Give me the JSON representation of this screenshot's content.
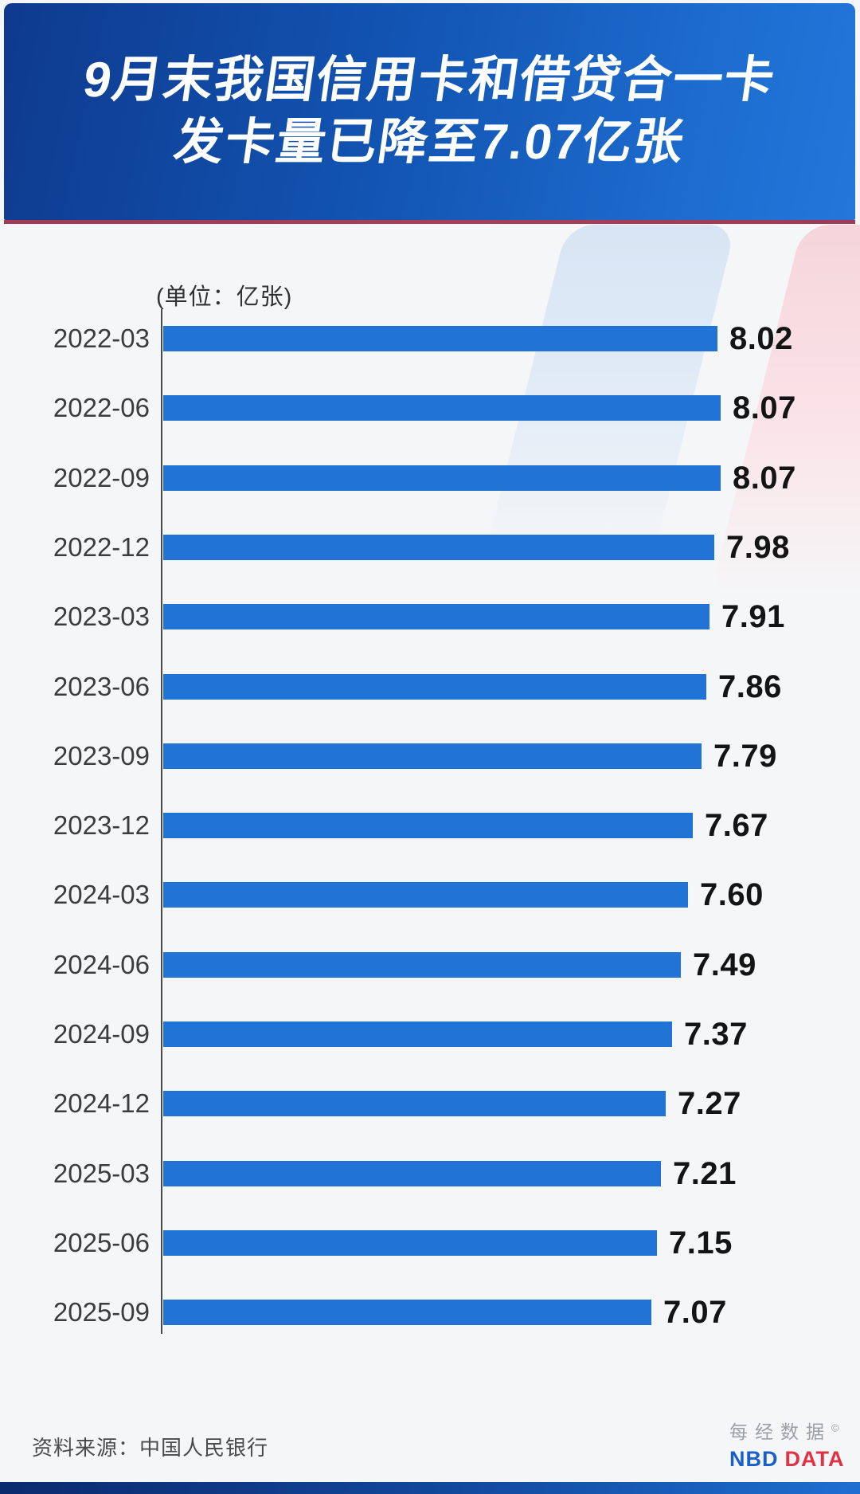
{
  "header": {
    "title_lines": [
      "9月末我国信用卡和借贷合一卡",
      "发卡量已降至7.07亿张"
    ]
  },
  "chart_data": {
    "type": "bar",
    "orientation": "horizontal",
    "title": "9月末我国信用卡和借贷合一卡发卡量已降至7.07亿张",
    "unit_label": "(单位：亿张)",
    "categories": [
      "2022-03",
      "2022-06",
      "2022-09",
      "2022-12",
      "2023-03",
      "2023-06",
      "2023-09",
      "2023-12",
      "2024-03",
      "2024-06",
      "2024-09",
      "2024-12",
      "2025-03",
      "2025-06",
      "2025-09"
    ],
    "values": [
      8.02,
      8.07,
      8.07,
      7.98,
      7.91,
      7.86,
      7.79,
      7.67,
      7.6,
      7.49,
      7.37,
      7.27,
      7.21,
      7.15,
      7.07
    ],
    "value_decimals": 2,
    "xlim": [
      0,
      8.07
    ],
    "grid": false,
    "legend": false,
    "bar_color": "#2173d6",
    "value_label_color": "#141414",
    "category_label_color": "#3c3c3c"
  },
  "footer": {
    "source": "资料来源：中国人民银行",
    "logo": {
      "cn": "每经数据",
      "copyright": "©",
      "en_blue": "NBD",
      "en_red": "DATA"
    }
  },
  "colors": {
    "banner_gradient_start": "#0e3a8e",
    "banner_gradient_end": "#1e6fd2",
    "banner_underline": "#a23a56",
    "background": "#f5f6f7",
    "decor_blue": "#d7e5f4",
    "decor_pink": "#f6d5dc",
    "bottom_strip_start": "#0a2a6d",
    "bottom_strip_end": "#1e6ed0",
    "nbd_blue": "#1a5fc8",
    "nbd_red": "#dd3344"
  }
}
